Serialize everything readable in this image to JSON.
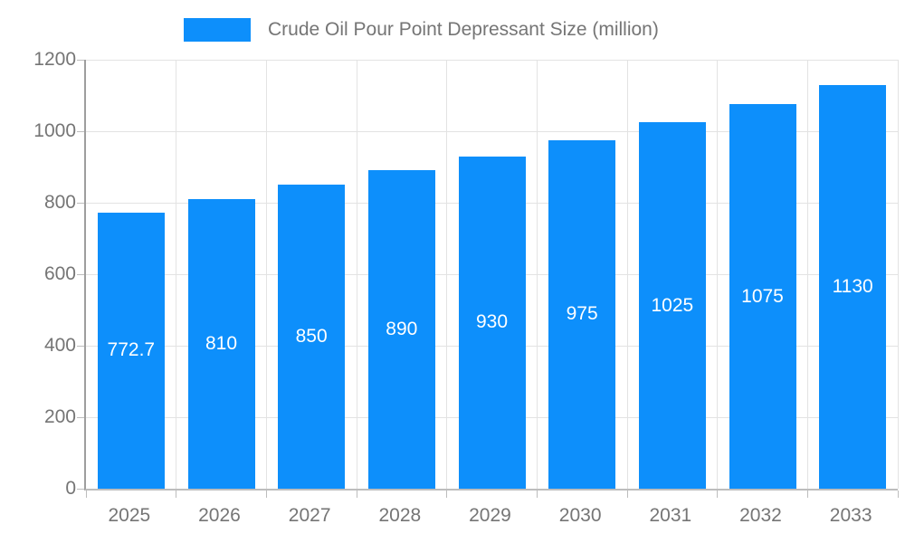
{
  "legend": {
    "label": "Crude Oil Pour Point Depressant Size (million)"
  },
  "chart_data": {
    "type": "bar",
    "title": "",
    "xlabel": "",
    "ylabel": "",
    "categories": [
      "2025",
      "2026",
      "2027",
      "2028",
      "2029",
      "2030",
      "2031",
      "2032",
      "2033"
    ],
    "series": [
      {
        "name": "Crude Oil Pour Point Depressant Size (million)",
        "values": [
          772.7,
          810,
          850,
          890,
          930,
          975,
          1025,
          1075,
          1130
        ]
      }
    ],
    "value_labels": [
      "772.7",
      "810",
      "850",
      "890",
      "930",
      "975",
      "1025",
      "1075",
      "1130"
    ],
    "ylim": [
      0,
      1200
    ],
    "yticks": [
      0,
      200,
      400,
      600,
      800,
      1000,
      1200
    ],
    "grid": true,
    "legend_position": "top-center",
    "colors": {
      "bar": "#0d8ffb",
      "value_label_text": "#ffffff",
      "axis_text": "#757575",
      "gridline": "#e3e3e3",
      "axis_line": "#9e9e9e"
    }
  }
}
